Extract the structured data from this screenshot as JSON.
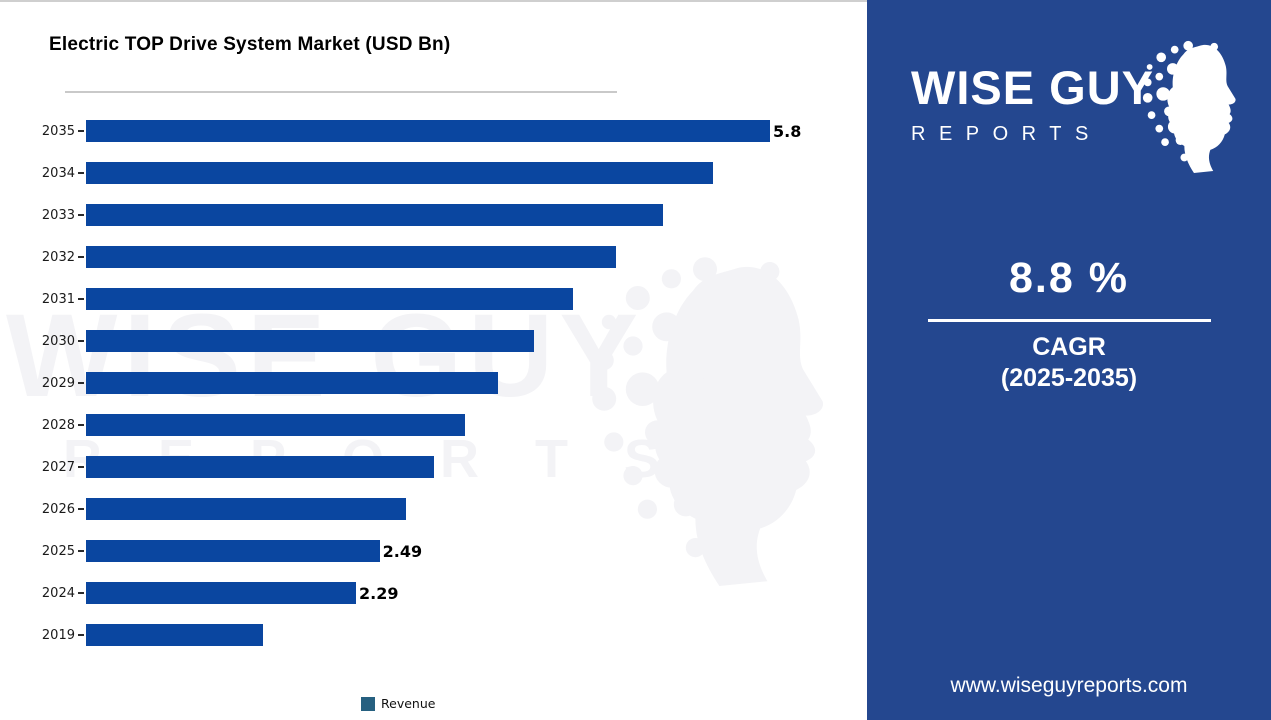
{
  "header": {
    "title": "Electric TOP Drive System Market (USD Bn)"
  },
  "chart_data": {
    "type": "bar",
    "orientation": "horizontal",
    "title": "Electric TOP Drive System Market (USD Bn)",
    "categories": [
      "2035",
      "2034",
      "2033",
      "2032",
      "2031",
      "2030",
      "2029",
      "2028",
      "2027",
      "2026",
      "2025",
      "2024",
      "2019"
    ],
    "values": [
      5.8,
      5.32,
      4.89,
      4.49,
      4.13,
      3.8,
      3.49,
      3.21,
      2.95,
      2.71,
      2.49,
      2.29,
      1.5
    ],
    "bar_labels": [
      "5.8",
      "",
      "",
      "",
      "",
      "",
      "",
      "",
      "",
      "",
      "2.49",
      "2.29",
      ""
    ],
    "xlim": [
      0,
      5.8
    ],
    "grid": false,
    "legend_position": "bottom",
    "bar_color": "#0a46a0",
    "legend_swatch_color": "#266080"
  },
  "legend": {
    "label": "Revenue"
  },
  "sidebar": {
    "bg_color": "#24478f",
    "brand_line1": "WISE GUY",
    "brand_line2": "REPORTS",
    "cagr_value": "8.8 %",
    "cagr_label_line1": "CAGR",
    "cagr_label_line2": "(2025-2035)",
    "website": "www.wiseguyreports.com"
  },
  "watermark": {
    "line1": "WISE GUY",
    "line2": "REPORTS"
  },
  "icons": {
    "dotted_head": "dotted-head-profile-logo"
  }
}
